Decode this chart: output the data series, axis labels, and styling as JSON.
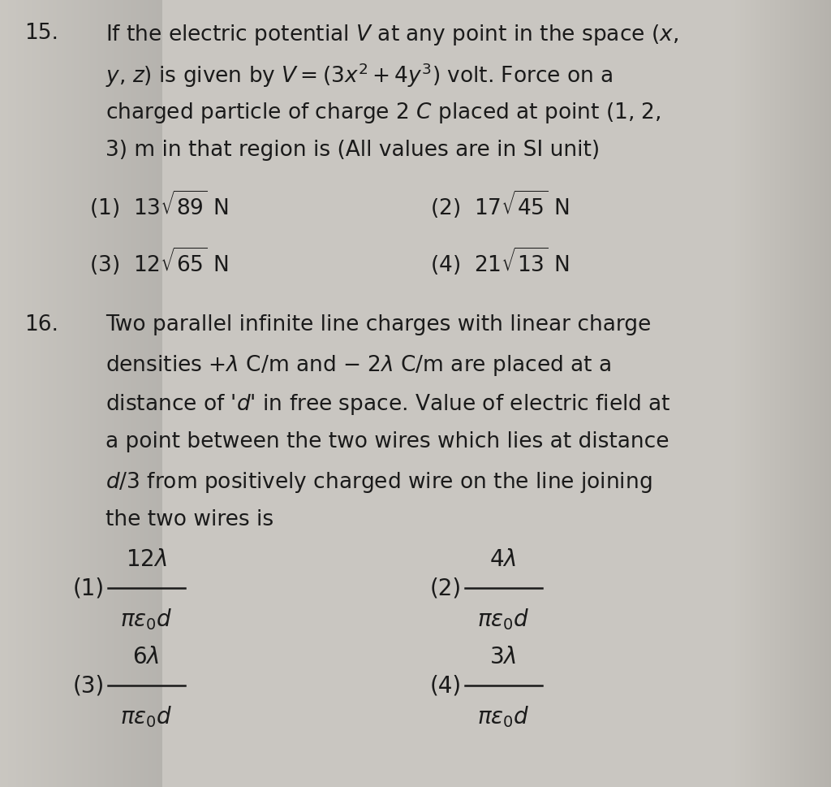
{
  "background_color": "#c8c4bc",
  "text_color": "#1a1a1a",
  "figsize": [
    10.24,
    9.7
  ],
  "dpi": 100,
  "q15_lines": [
    "If the electric potential $V$ at any point in the space ($x$,",
    "$y$, $z$) is given by $V = (3x^2 + 4y^3)$ volt. Force on a",
    "charged particle of charge 2 $C$ placed at point (1, 2,",
    "3) m in that region is (All values are in SI unit)"
  ],
  "q15_opts": [
    [
      "(1)",
      "$13\\sqrt{89}$ N",
      "(2)",
      "$17\\sqrt{45}$ N"
    ],
    [
      "(3)",
      "$12\\sqrt{65}$ N",
      "(4)",
      "$21\\sqrt{13}$ N"
    ]
  ],
  "q16_lines": [
    "Two parallel infinite line charges with linear charge",
    "densities $+\\lambda$ C/m and $-$ $2\\lambda$ C/m are placed at a",
    "distance of \\textquoteleft$d$\\textquoteright in free space. Value of electric field at",
    "a point between the two wires which lies at distance",
    "$d$/3 from positively charged wire on the line joining",
    "the two wires is"
  ],
  "q16_fracs": [
    {
      "label": "(1)",
      "num": "$12\\lambda$",
      "den": "$\\pi\\varepsilon_0 d$"
    },
    {
      "label": "(2)",
      "num": "$4\\lambda$",
      "den": "$\\pi\\varepsilon_0 d$"
    },
    {
      "label": "(3)",
      "num": "$6\\lambda$",
      "den": "$\\pi\\varepsilon_0 d$"
    },
    {
      "label": "(4)",
      "num": "$3\\lambda$",
      "den": "$\\pi\\varepsilon_0 d$"
    }
  ]
}
